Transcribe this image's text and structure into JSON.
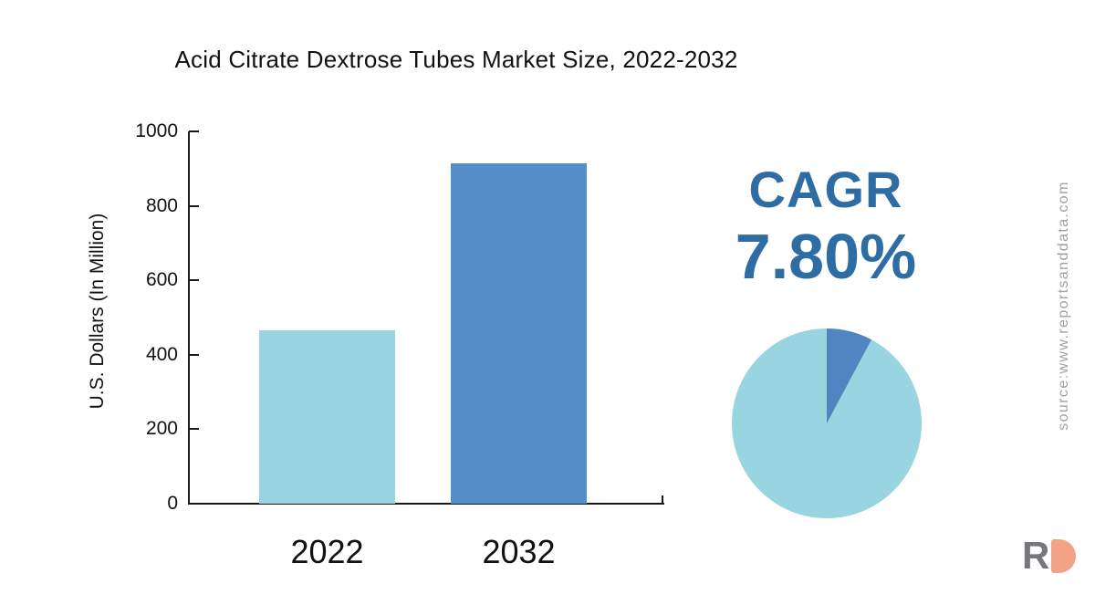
{
  "title": "Acid Citrate Dextrose Tubes Market Size, 2022-2032",
  "source_note": "source:www.reportsanddata.com",
  "cagr": {
    "label": "CAGR",
    "value": "7.80%"
  },
  "logo": {
    "letter": "R"
  },
  "colors": {
    "bar_2022": "#98d5e0",
    "bar_2032": "#548fc8",
    "pie_main": "#98d5e0",
    "pie_slice": "#4f86c1",
    "cagr_text": "#2e6da4",
    "source_text": "#a0a0a0",
    "logo_r": "#76767e",
    "logo_d": "#f3a488",
    "axis": "#1a1a1a"
  },
  "chart_data": [
    {
      "type": "bar",
      "title": "Acid Citrate Dextrose Tubes Market Size, 2022-2032",
      "categories": [
        "2022",
        "2032"
      ],
      "values": [
        465,
        915
      ],
      "xlabel": "",
      "ylabel": "U.S. Dollars (In Million)",
      "ylim": [
        0,
        1000
      ],
      "yticks": [
        0,
        200,
        400,
        600,
        800,
        1000
      ],
      "grid": false,
      "legend": "none",
      "bar_colors": [
        "#98d5e0",
        "#548fc8"
      ]
    },
    {
      "type": "pie",
      "title": "CAGR 7.80%",
      "slices": [
        {
          "name": "CAGR highlight",
          "value": 7.8,
          "color": "#4f86c1"
        },
        {
          "name": "remainder",
          "value": 92.2,
          "color": "#98d5e0"
        }
      ],
      "start_angle": "12 o'clock",
      "direction": "clockwise",
      "legend_position": "none"
    }
  ]
}
